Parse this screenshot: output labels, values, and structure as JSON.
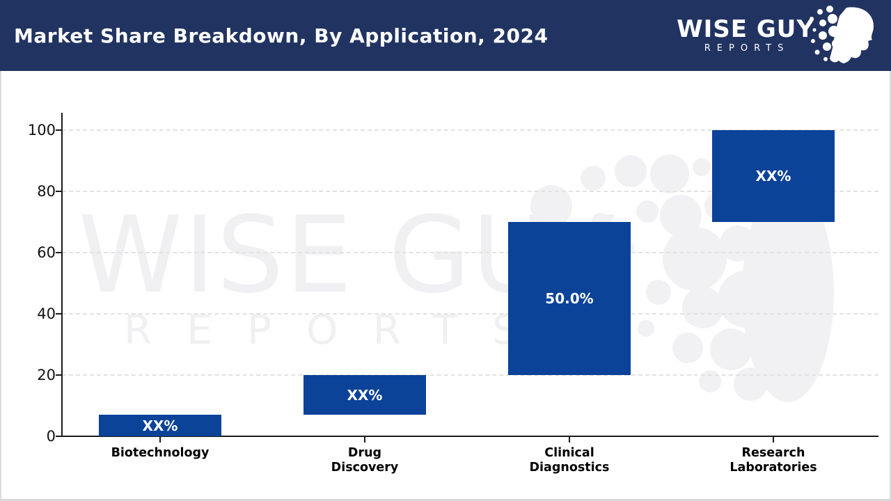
{
  "header": {
    "title": "Market Share Breakdown, By Application, 2024",
    "logo": {
      "name": "WISE GUY",
      "sub": "REPORTS"
    }
  },
  "watermark": {
    "name": "WISE GUY",
    "sub": "REPORTS"
  },
  "chart_data": {
    "type": "bar",
    "subtype": "waterfall-floating-bars",
    "title": "Market Share Breakdown, By Application, 2024",
    "categories": [
      "Biotechnology",
      "Drug Discovery",
      "Clinical Diagnostics",
      "Research Laboratories"
    ],
    "values": [
      7,
      13,
      50,
      30
    ],
    "segments": [
      {
        "category": "Biotechnology",
        "start": 0,
        "end": 7,
        "label": "XX%"
      },
      {
        "category": "Drug Discovery",
        "start": 7,
        "end": 20,
        "label": "XX%"
      },
      {
        "category": "Clinical Diagnostics",
        "start": 20,
        "end": 70,
        "label": "50.0%"
      },
      {
        "category": "Research Laboratories",
        "start": 70,
        "end": 100,
        "label": "XX%"
      }
    ],
    "xlabel": "",
    "ylabel": "",
    "ylim": [
      0,
      100
    ],
    "yticks": [
      "0",
      "20",
      "40",
      "60",
      "80",
      "100"
    ],
    "grid": "horizontal-dashed",
    "legend": "none",
    "bar_color": "#0b4399",
    "bar_label_color": "#ffffff",
    "axis_color": "#1a1a1a",
    "gridline_color": "#e2e2e2",
    "header_color": "#213361"
  }
}
